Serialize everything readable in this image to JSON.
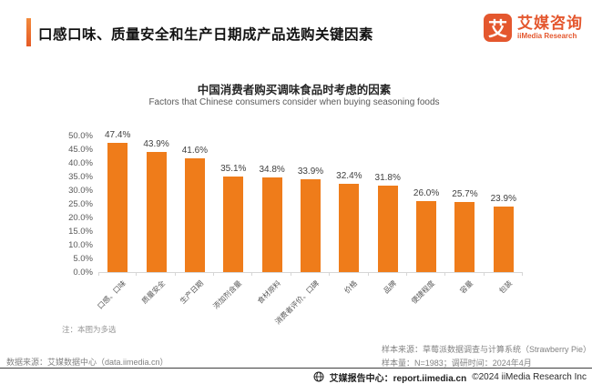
{
  "header": {
    "title": "口感口味、质量安全和生产日期成产品选购关键因素",
    "logo": {
      "icon_char": "艾",
      "name_cn": "艾媒咨询",
      "name_en": "iiMedia Research"
    }
  },
  "chart": {
    "note": "注：本图为多选"
  },
  "chart_data": {
    "type": "bar",
    "title": "中国消费者购买调味食品时考虑的因素",
    "subtitle": "Factors that Chinese consumers consider when buying seasoning foods",
    "categories": [
      "口感、口味",
      "质量安全",
      "生产日期",
      "添加剂含量",
      "食材原料",
      "消费者评价、口碑",
      "价格",
      "品牌",
      "便捷程度",
      "容量",
      "包装"
    ],
    "values": [
      47.4,
      43.9,
      41.6,
      35.1,
      34.8,
      33.9,
      32.4,
      31.8,
      26.0,
      25.7,
      23.9
    ],
    "unit": "%",
    "ylim": [
      0,
      50
    ],
    "ytick_step": 5,
    "bar_color": "#EF7C1A",
    "grid": false,
    "legend": false
  },
  "footer": {
    "data_source": "数据来源：艾媒数据中心（data.iimedia.cn）",
    "sample_source": "样本来源：草莓派数据调查与计算系统（Strawberry Pie）",
    "sample_info": "样本量：N=1983；调研时间：2024年4月",
    "report_center": "艾媒报告中心：report.iimedia.cn",
    "copyright": "©2024  iiMedia Research Inc"
  }
}
